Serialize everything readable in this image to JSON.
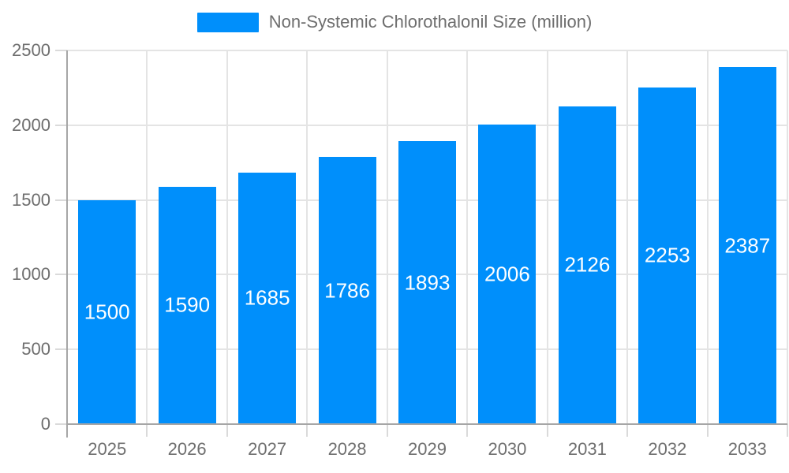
{
  "chart_data": {
    "type": "bar",
    "categories": [
      "2025",
      "2026",
      "2027",
      "2028",
      "2029",
      "2030",
      "2031",
      "2032",
      "2033"
    ],
    "series": [
      {
        "name": "Non-Systemic Chlorothalonil Size (million)",
        "values": [
          1500,
          1590,
          1685,
          1786,
          1893,
          2006,
          2126,
          2253,
          2387
        ]
      }
    ],
    "ylim": [
      0,
      2500
    ],
    "ytick_step": 500,
    "yticks": [
      0,
      500,
      1000,
      1500,
      2000,
      2500
    ],
    "grid": true,
    "legend_position": "top",
    "data_labels": "inside-center"
  },
  "colors": {
    "bar": "#008FFB",
    "data_label": "#ffffff",
    "axis_label": "#6e6e6e",
    "axis_line": "#a6a6a6",
    "gridline": "#e4e4e4",
    "tick": "#dadada"
  }
}
